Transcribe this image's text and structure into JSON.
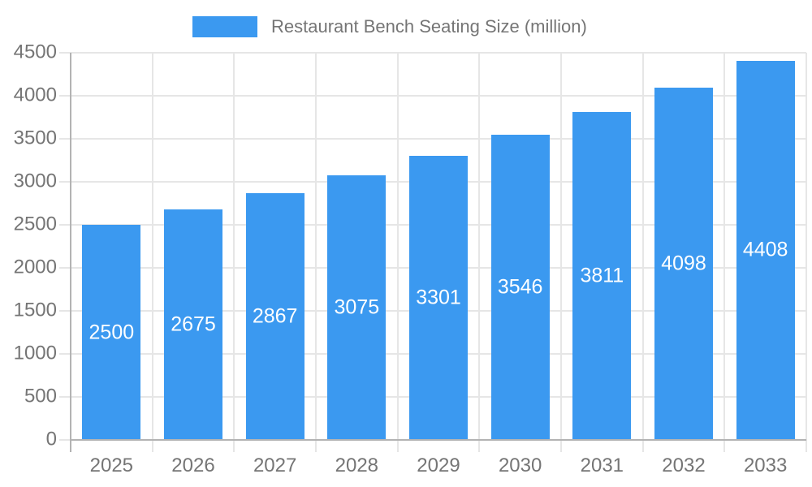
{
  "legend": {
    "label": "Restaurant Bench Seating Size (million)"
  },
  "colors": {
    "bar": "#3B99F0",
    "bar_label_text": "#FFFFFF",
    "axis_text": "#757575",
    "legend_text": "#757575",
    "gridline": "#E6E6E6",
    "axis_line": "#B3B3B3",
    "background": "#FFFFFF"
  },
  "chart_data": {
    "type": "bar",
    "title": "Restaurant Bench Seating Size (million)",
    "legend_position": "top",
    "categories": [
      "2025",
      "2026",
      "2027",
      "2028",
      "2029",
      "2030",
      "2031",
      "2032",
      "2033"
    ],
    "series": [
      {
        "name": "Restaurant Bench Seating Size (million)",
        "values": [
          2500,
          2675,
          2867,
          3075,
          3301,
          3546,
          3811,
          4098,
          4408
        ]
      }
    ],
    "data_labels_position": "inside-center",
    "xlabel": "",
    "ylabel": "",
    "ylim": [
      0,
      4500
    ],
    "yticks": [
      0,
      500,
      1000,
      1500,
      2000,
      2500,
      3000,
      3500,
      4000,
      4500
    ],
    "grid": true
  }
}
